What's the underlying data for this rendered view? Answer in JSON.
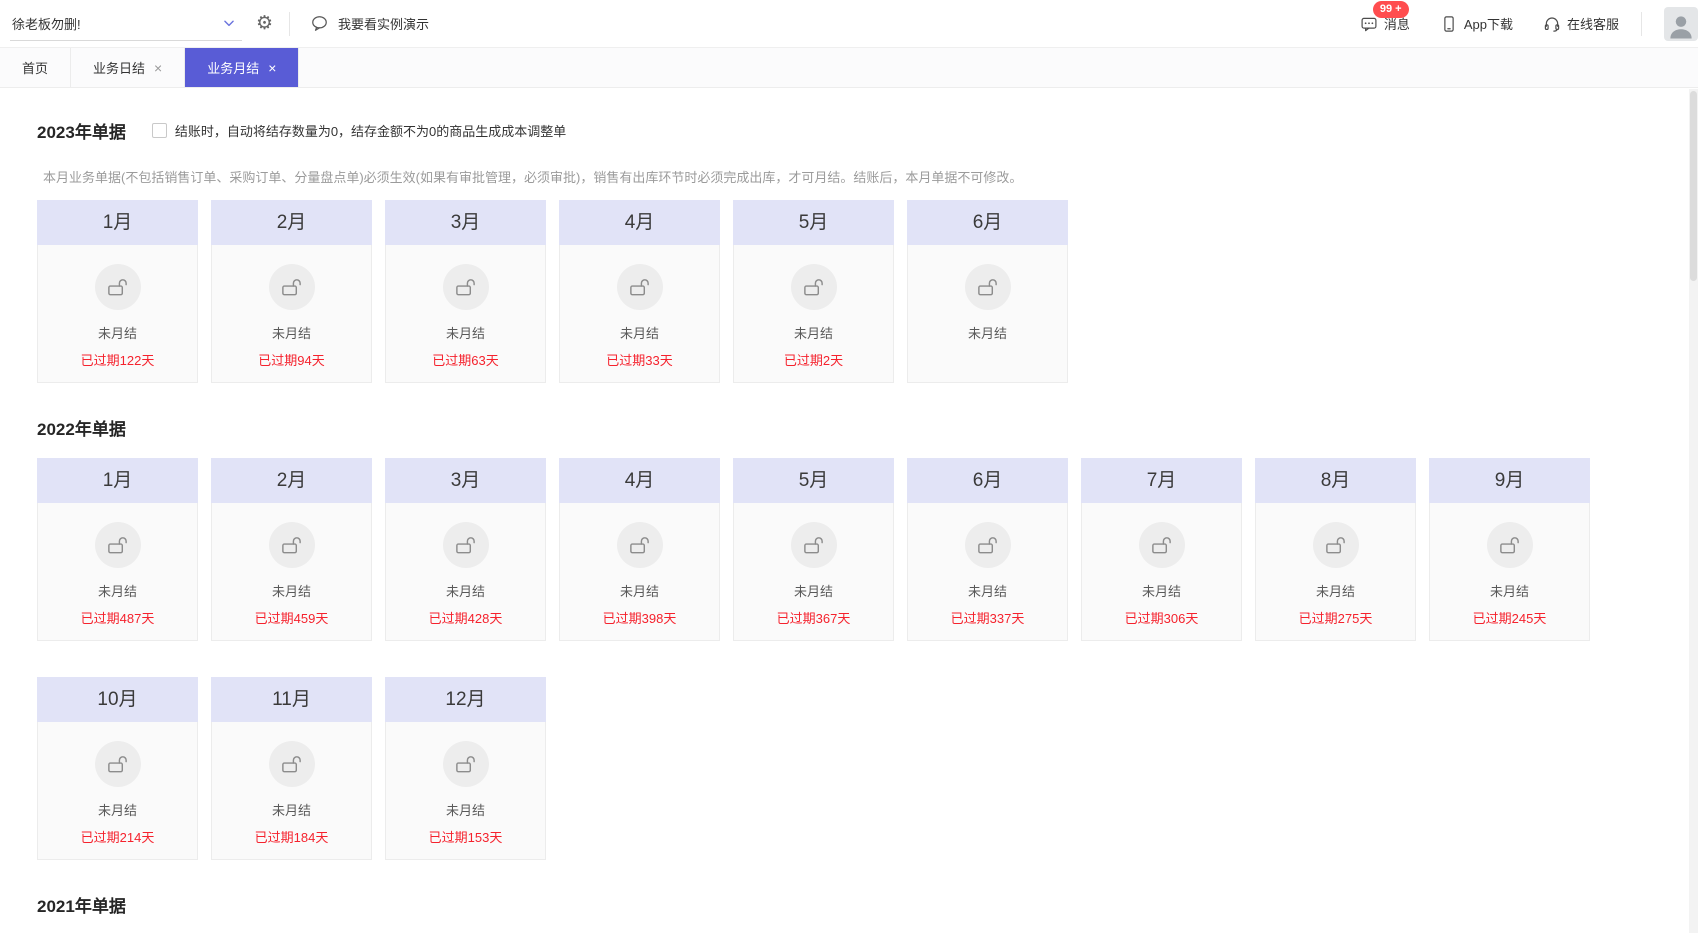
{
  "topbar": {
    "account_select": {
      "value": "徐老板勿删!"
    },
    "demo_link": "我要看实例演示",
    "messages": {
      "label": "消息",
      "badge": "99 +"
    },
    "app_download": "App下载",
    "online_service": "在线客服"
  },
  "glyphs": {
    "gear": "⚙",
    "close": "×"
  },
  "colors": {
    "accent": "#595cd6",
    "card_header_bg": "#e1e3f7",
    "expired_red": "#f5222d",
    "badge_red": "#ff4d4f"
  },
  "tabs": [
    {
      "label": "首页",
      "closable": false,
      "active": false
    },
    {
      "label": "业务日结",
      "closable": true,
      "active": false
    },
    {
      "label": "业务月结",
      "closable": true,
      "active": true
    }
  ],
  "content": {
    "sections": [
      {
        "title": "2023年单据",
        "checkbox_label": "结账时，自动将结存数量为0，结存金额不为0的商品生成成本调整单",
        "checkbox_checked": false,
        "hint": "本月业务单据(不包括销售订单、采购订单、分量盘点单)必须生效(如果有审批管理，必须审批)，销售有出库环节时必须完成出库，才可月结。结账后，本月单据不可修改。",
        "months": [
          {
            "label": "1月",
            "status": "未月结",
            "expired": "已过期122天"
          },
          {
            "label": "2月",
            "status": "未月结",
            "expired": "已过期94天"
          },
          {
            "label": "3月",
            "status": "未月结",
            "expired": "已过期63天"
          },
          {
            "label": "4月",
            "status": "未月结",
            "expired": "已过期33天"
          },
          {
            "label": "5月",
            "status": "未月结",
            "expired": "已过期2天"
          },
          {
            "label": "6月",
            "status": "未月结",
            "expired": ""
          }
        ]
      },
      {
        "title": "2022年单据",
        "months": [
          {
            "label": "1月",
            "status": "未月结",
            "expired": "已过期487天"
          },
          {
            "label": "2月",
            "status": "未月结",
            "expired": "已过期459天"
          },
          {
            "label": "3月",
            "status": "未月结",
            "expired": "已过期428天"
          },
          {
            "label": "4月",
            "status": "未月结",
            "expired": "已过期398天"
          },
          {
            "label": "5月",
            "status": "未月结",
            "expired": "已过期367天"
          },
          {
            "label": "6月",
            "status": "未月结",
            "expired": "已过期337天"
          },
          {
            "label": "7月",
            "status": "未月结",
            "expired": "已过期306天"
          },
          {
            "label": "8月",
            "status": "未月结",
            "expired": "已过期275天"
          },
          {
            "label": "9月",
            "status": "未月结",
            "expired": "已过期245天"
          },
          {
            "label": "10月",
            "status": "未月结",
            "expired": "已过期214天"
          },
          {
            "label": "11月",
            "status": "未月结",
            "expired": "已过期184天"
          },
          {
            "label": "12月",
            "status": "未月结",
            "expired": "已过期153天"
          }
        ]
      },
      {
        "title": "2021年单据",
        "months": []
      }
    ]
  }
}
